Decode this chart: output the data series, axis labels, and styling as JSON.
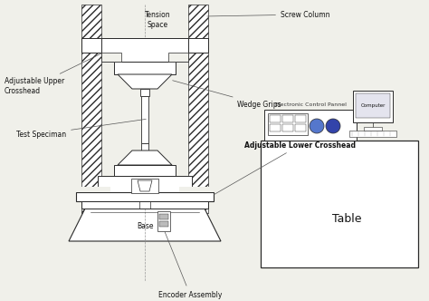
{
  "bg_color": "#f0f0ea",
  "line_color": "#2a2a2a",
  "label_color": "#111111",
  "labels": {
    "tension_space": "Tension\nSpace",
    "screw_column": "Screw Column",
    "upper_crosshead": "Adjustable Upper\nCrosshead",
    "wedge_grips": "Wedge Grips",
    "test_specimen": "Test Speciman",
    "lower_crosshead": "Adjustable Lower Crosshead",
    "electronic_panel": "Electronic Control Pannel",
    "computer": "Computer",
    "table": "Table",
    "base": "Base",
    "encoder": "Encoder Assembly"
  }
}
